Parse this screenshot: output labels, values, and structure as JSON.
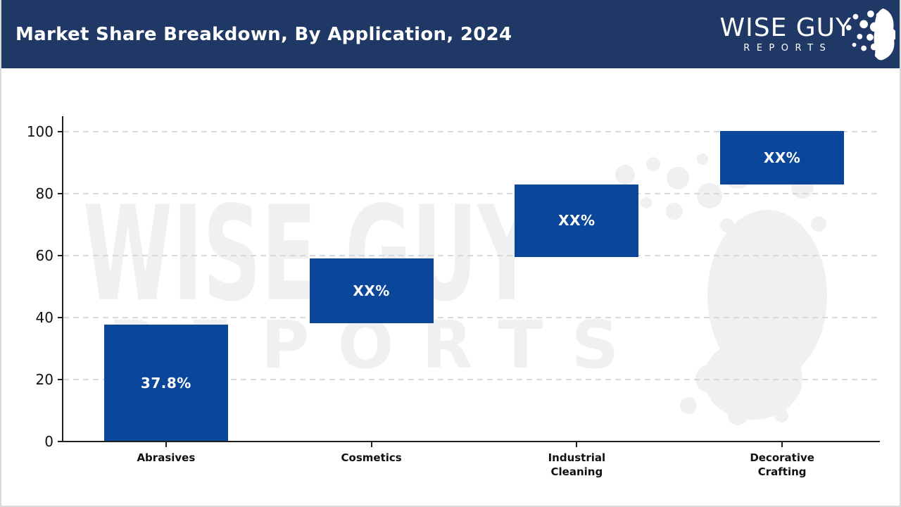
{
  "header": {
    "title": "Market Share Breakdown, By Application, 2024",
    "logo": {
      "primary": "WISE GUY",
      "secondary": "REPORTS"
    }
  },
  "watermark": {
    "primary": "WISE GUY",
    "secondary": "REPORTS"
  },
  "chart_data": {
    "type": "bar",
    "subtype": "waterfall",
    "title": "Market Share Breakdown, By Application, 2024",
    "xlabel": "",
    "ylabel": "",
    "ylim": [
      0,
      105
    ],
    "y_ticks": [
      0,
      20,
      40,
      60,
      80,
      100
    ],
    "grid": "horizontal-dashed",
    "legend": "none",
    "categories": [
      "Abrasives",
      "Cosmetics",
      "Industrial Cleaning",
      "Decorative Crafting"
    ],
    "category_lines": [
      [
        "Abrasives"
      ],
      [
        "Cosmetics"
      ],
      [
        "Industrial",
        "Cleaning"
      ],
      [
        "Decorative",
        "Crafting"
      ]
    ],
    "bars": [
      {
        "category": "Abrasives",
        "start": 0,
        "end": 37.8,
        "label": "37.8%"
      },
      {
        "category": "Cosmetics",
        "start": 38.2,
        "end": 59.0,
        "label": "XX%"
      },
      {
        "category": "Industrial Cleaning",
        "start": 59.5,
        "end": 83.0,
        "label": "XX%"
      },
      {
        "category": "Decorative Crafting",
        "start": 83.0,
        "end": 100.2,
        "label": "XX%"
      }
    ]
  },
  "colors": {
    "header_bg": "#203866",
    "bar": "#0a4699",
    "bar_label": "#ffffff",
    "grid": "#d9d9d9",
    "axis": "#1f1f1f",
    "watermark": "#f0f0f3",
    "page_bg": "#ffffff"
  }
}
